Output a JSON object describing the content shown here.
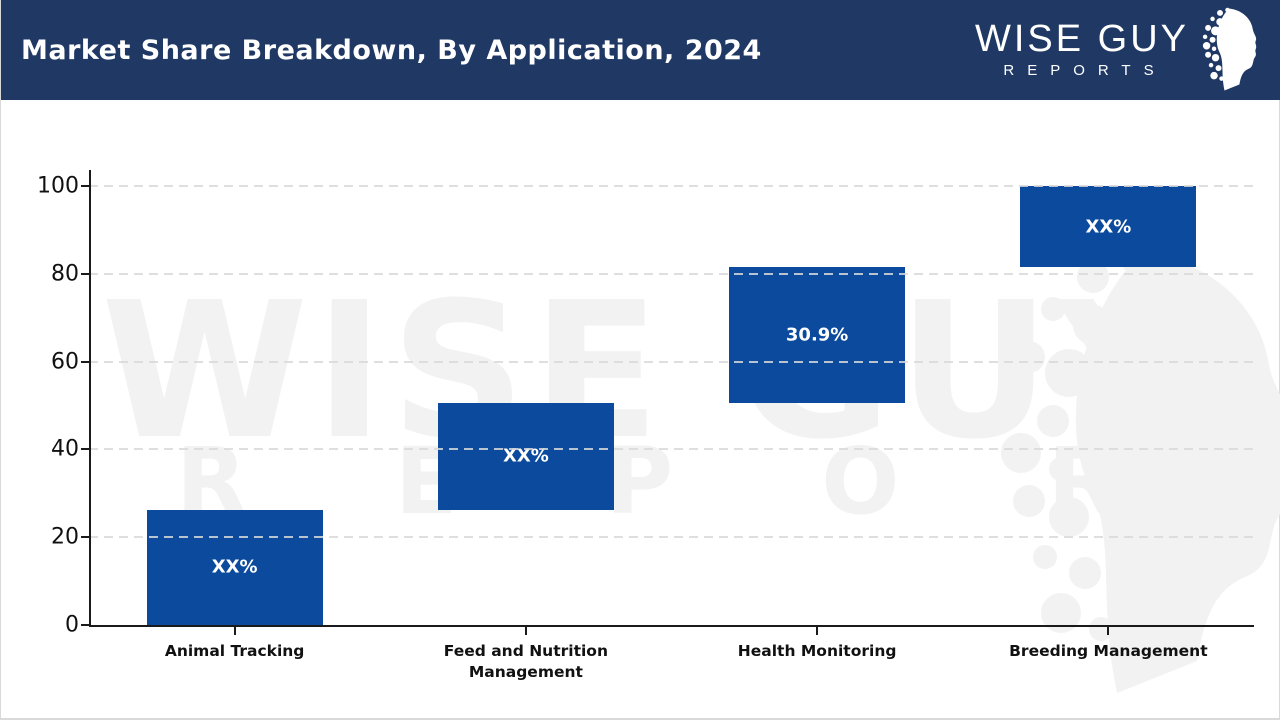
{
  "header": {
    "title": "Market Share Breakdown, By Application, 2024",
    "logo": {
      "line1": "WISE GUY",
      "line2": "REPORTS",
      "icon": "dotted-face-profile"
    }
  },
  "watermark": {
    "line1": "WISE GUY",
    "line2": "R E P O R T S",
    "icon": "dotted-face-profile"
  },
  "colors": {
    "header_bg": "#1f3864",
    "bar": "#0b4a9c",
    "grid": "#d9d9d9",
    "axis": "#1a1a1a",
    "bar_label_text": "#ffffff",
    "watermark": "#f2f2f2"
  },
  "chart_data": {
    "type": "bar",
    "subtype": "waterfall-floating-bars",
    "title": "Market Share Breakdown, By Application, 2024",
    "categories": [
      "Animal Tracking",
      "Feed and Nutrition Management",
      "Health Monitoring",
      "Breeding Management"
    ],
    "segments": [
      {
        "category": "Animal Tracking",
        "start": 0,
        "end": 26.2,
        "label": "XX%"
      },
      {
        "category": "Feed and Nutrition Management",
        "start": 26.2,
        "end": 50.6,
        "label": "XX%"
      },
      {
        "category": "Health Monitoring",
        "start": 50.6,
        "end": 81.5,
        "label": "30.9%"
      },
      {
        "category": "Breeding Management",
        "start": 81.5,
        "end": 100,
        "label": "XX%"
      }
    ],
    "y_ticks": [
      0,
      20,
      40,
      60,
      80,
      100
    ],
    "ylim": [
      0,
      100
    ],
    "xlabel": "",
    "ylabel": "",
    "grid": "horizontal-dashed-over-bars",
    "legend": "none"
  }
}
